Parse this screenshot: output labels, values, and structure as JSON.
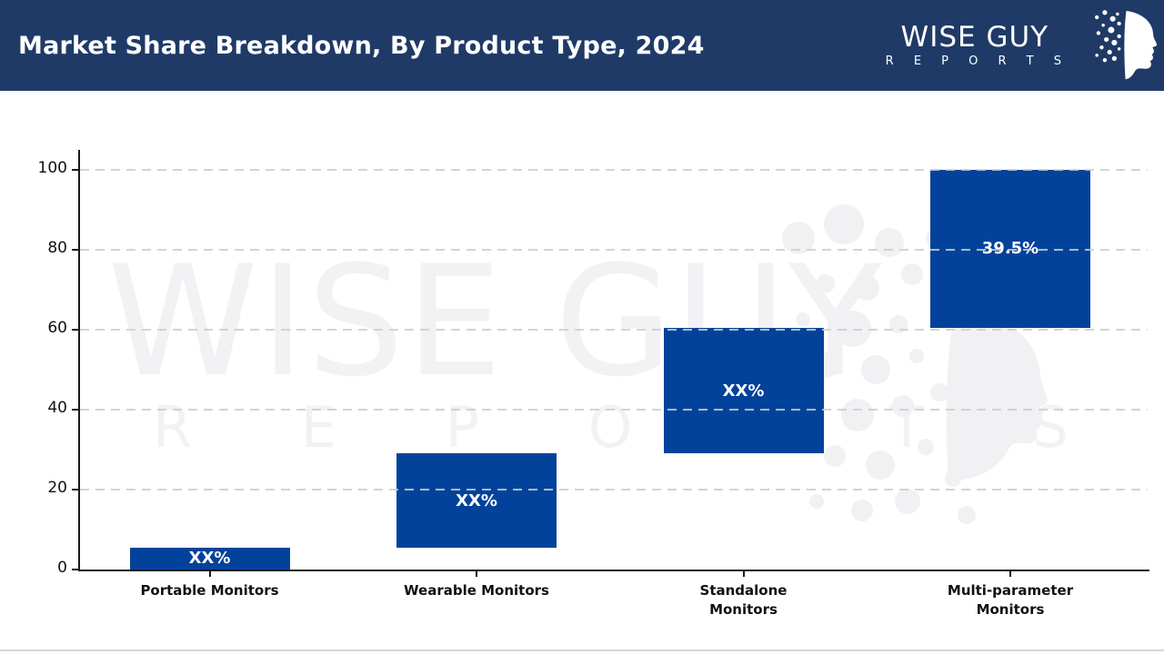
{
  "header": {
    "title": "Market Share Breakdown, By Product Type, 2024",
    "logo": {
      "line1": "WISE GUY",
      "line2": "R E P O R T S"
    },
    "bg_color": "#203a67"
  },
  "watermark": {
    "line1": "WISE GUY",
    "line2": "R E P O R T S"
  },
  "chart_data": {
    "type": "bar",
    "subtype": "floating-segment waterfall of market share",
    "title": "Market Share Breakdown, By Product Type, 2024",
    "categories": [
      "Portable Monitors",
      "Wearable Monitors",
      "Standalone Monitors",
      "Multi-parameter Monitors"
    ],
    "category_lines": [
      [
        "Portable Monitors"
      ],
      [
        "Wearable Monitors"
      ],
      [
        "Standalone",
        "Monitors"
      ],
      [
        "Multi-parameter",
        "Monitors"
      ]
    ],
    "series": [
      {
        "name": "Market share (%)",
        "segments": [
          {
            "category": "Portable Monitors",
            "from": 0,
            "to": 5.5,
            "label": "XX%"
          },
          {
            "category": "Wearable Monitors",
            "from": 5.5,
            "to": 29,
            "label": "XX%"
          },
          {
            "category": "Standalone Monitors",
            "from": 29,
            "to": 60.5,
            "label": "XX%"
          },
          {
            "category": "Multi-parameter Monitors",
            "from": 60.5,
            "to": 100,
            "label": "39.5%"
          }
        ]
      }
    ],
    "xlabel": "",
    "ylabel": "",
    "yticks": [
      0,
      20,
      40,
      60,
      80,
      100
    ],
    "ylim": [
      0,
      105
    ],
    "grid": "horizontal dashed, drawn over bars",
    "legend": "none",
    "bar_color": "#03429b",
    "bar_label_color": "#ffffff",
    "axis_color": "#1a1a1a",
    "grid_color": "#d9d9d9"
  }
}
